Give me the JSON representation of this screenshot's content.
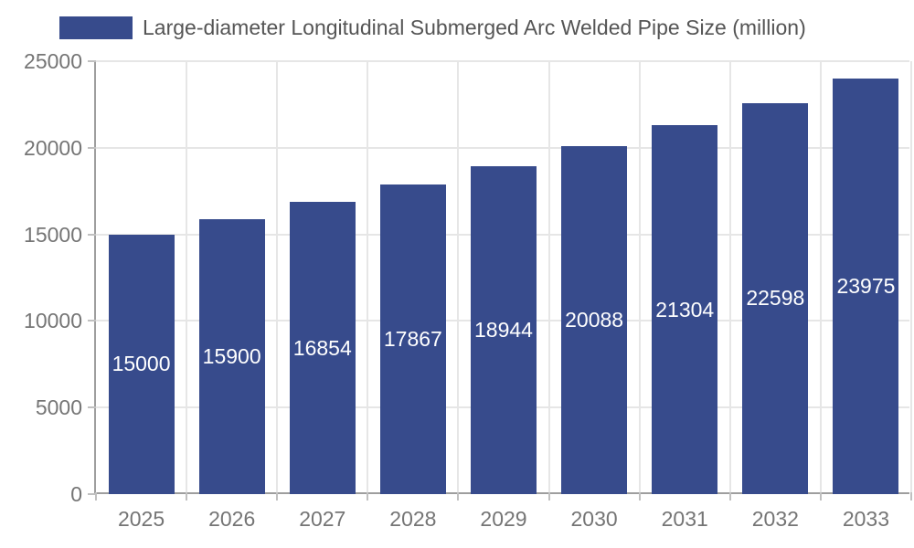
{
  "chart_data": {
    "type": "bar",
    "title": "",
    "xlabel": "",
    "ylabel": "",
    "legend_position": "top-left",
    "grid": true,
    "categories": [
      "2025",
      "2026",
      "2027",
      "2028",
      "2029",
      "2030",
      "2031",
      "2032",
      "2033"
    ],
    "series": [
      {
        "name": "Large-diameter Longitudinal Submerged Arc Welded Pipe Size (million)",
        "values": [
          15000,
          15900,
          16854,
          17867,
          18944,
          20088,
          21304,
          22598,
          23975
        ]
      }
    ],
    "value_labels_shown": true,
    "ylim": [
      0,
      25000
    ],
    "yticks": [
      0,
      5000,
      10000,
      15000,
      20000,
      25000
    ],
    "colors": {
      "bar": "#374B8C",
      "value_label": "#ffffff",
      "axis": "#9e9e9e",
      "tick": "#c0c0c0",
      "grid": "#e6e6e6",
      "tick_label": "#757575",
      "legend_text": "#555555",
      "background": "#ffffff"
    }
  }
}
